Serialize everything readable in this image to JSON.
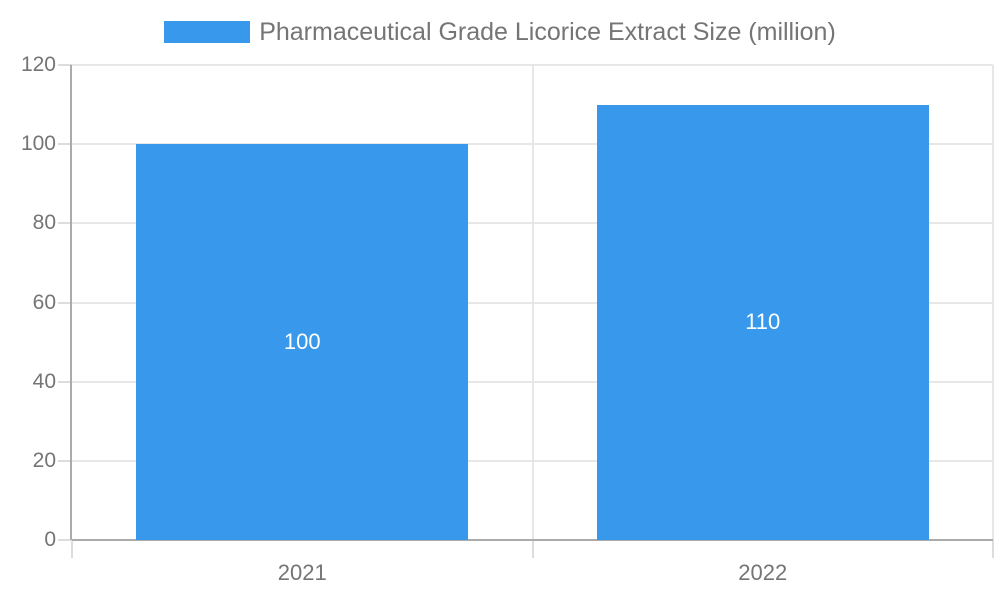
{
  "chart_data": {
    "type": "bar",
    "title": "Pharmaceutical Grade Licorice Extract Size (million)",
    "categories": [
      "2021",
      "2022"
    ],
    "values": [
      100,
      110
    ],
    "data_labels": [
      "100",
      "110"
    ],
    "xlabel": "",
    "ylabel": "",
    "ylim": [
      0,
      120
    ],
    "yticks": [
      0,
      20,
      40,
      60,
      80,
      100,
      120
    ],
    "grid": true,
    "legend": {
      "position": "top",
      "label": "Pharmaceutical Grade Licorice Extract Size (million)"
    },
    "colors": {
      "bar": "#3898ec",
      "grid": "#e7e7e7",
      "axis": "#ababab",
      "tick_text": "#757575",
      "data_label": "#ffffff",
      "background": "#ffffff"
    }
  }
}
